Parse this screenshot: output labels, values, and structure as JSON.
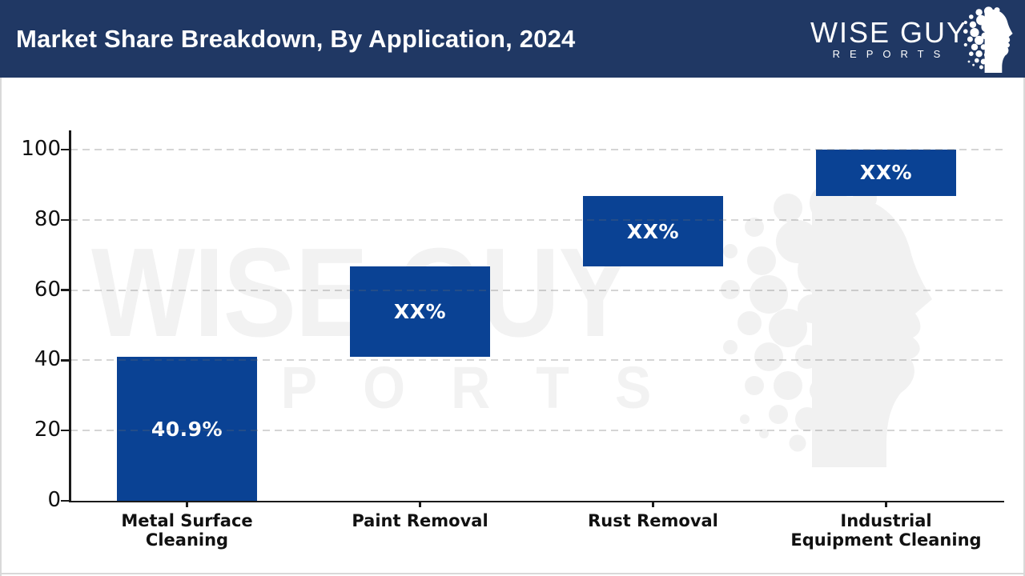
{
  "header": {
    "title": "Market Share Breakdown, By Application, 2024",
    "bg_color": "#203864",
    "logo": {
      "line1": "WISE GUY",
      "line2": "REPORTS"
    }
  },
  "watermark": {
    "line1": "WISE GUY",
    "line2": "REPORTS"
  },
  "frame": {
    "border_color": "#d9d9d9"
  },
  "chart_data": {
    "type": "bar",
    "subtype": "waterfall",
    "title": "Market Share Breakdown, By Application, 2024",
    "categories": [
      "Metal Surface Cleaning",
      "Paint Removal",
      "Rust Removal",
      "Industrial Equipment Cleaning"
    ],
    "category_label_lines": [
      [
        "Metal Surface",
        "Cleaning"
      ],
      [
        "Paint Removal"
      ],
      [
        "Rust Removal"
      ],
      [
        "Industrial",
        "Equipment Cleaning"
      ]
    ],
    "bars": [
      {
        "category": "Metal Surface Cleaning",
        "start": 0,
        "end": 40.9,
        "label": "40.9%"
      },
      {
        "category": "Paint Removal",
        "start": 40.9,
        "end": 66.7,
        "label": "XX%"
      },
      {
        "category": "Rust Removal",
        "start": 66.7,
        "end": 86.8,
        "label": "XX%"
      },
      {
        "category": "Industrial Equipment Cleaning",
        "start": 86.8,
        "end": 100,
        "label": "XX%"
      }
    ],
    "yticks": [
      0,
      20,
      40,
      60,
      80,
      100
    ],
    "ylim": [
      0,
      105
    ],
    "grid": "dashed-horizontal",
    "legend": "none",
    "bar_color": "#0a4294",
    "label_color": "#ffffff",
    "axis_color": "#1a1a1a",
    "grid_color": "#d9d9d9",
    "xlabel": "",
    "ylabel": ""
  }
}
